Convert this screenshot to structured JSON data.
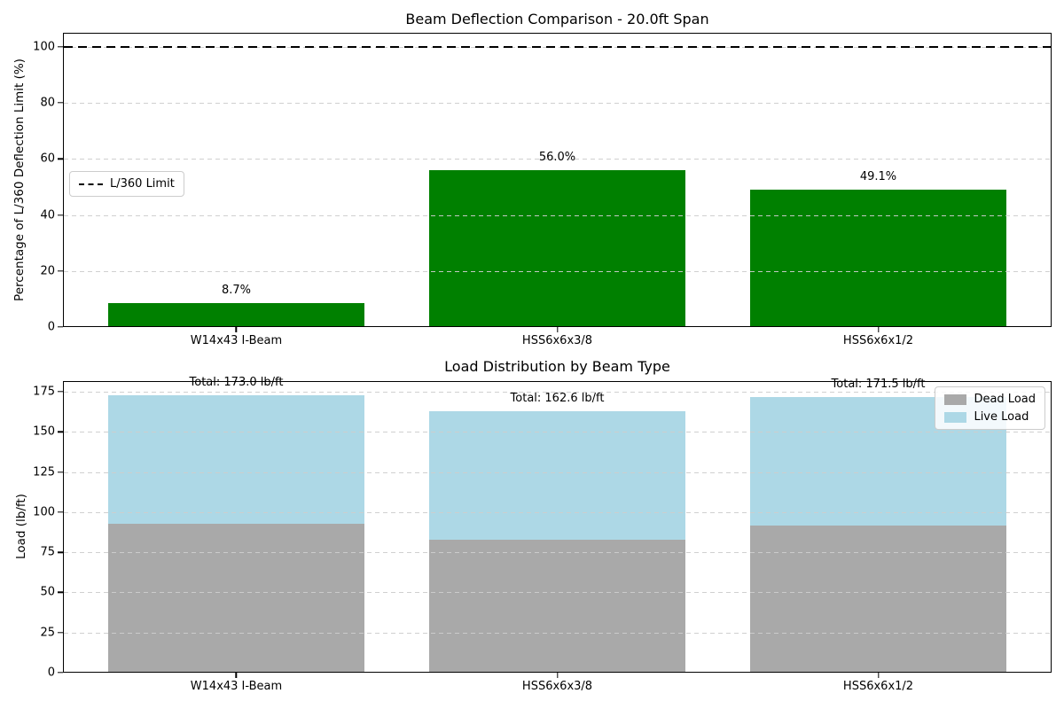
{
  "chart_data": [
    {
      "type": "bar",
      "title": "Beam Deflection Comparison - 20.0ft Span",
      "ylabel": "Percentage of L/360 Deflection Limit (%)",
      "categories": [
        "W14x43 I-Beam",
        "HSS6x6x3/8",
        "HSS6x6x1/2"
      ],
      "values": [
        8.7,
        56.0,
        49.1
      ],
      "value_labels": [
        "8.7%",
        "56.0%",
        "49.1%"
      ],
      "yticks": [
        0,
        20,
        40,
        60,
        80,
        100
      ],
      "ymax": 105,
      "bar_color": "#008000",
      "grid": true,
      "limit_line": {
        "value": 100,
        "label": "L/360 Limit",
        "color": "#000000"
      },
      "legend_position": "center left"
    },
    {
      "type": "stacked-bar",
      "title": "Load Distribution by Beam Type",
      "ylabel": "Load (lb/ft)",
      "categories": [
        "W14x43 I-Beam",
        "HSS6x6x3/8",
        "HSS6x6x1/2"
      ],
      "series": [
        {
          "name": "Dead Load",
          "color": "#a9a9a9",
          "values": [
            93.0,
            82.6,
            91.5
          ]
        },
        {
          "name": "Live Load",
          "color": "#add8e6",
          "values": [
            80.0,
            80.0,
            80.0
          ]
        }
      ],
      "totals": [
        173.0,
        162.6,
        171.5
      ],
      "total_labels": [
        "Total: 173.0 lb/ft",
        "Total: 162.6 lb/ft",
        "Total: 171.5 lb/ft"
      ],
      "yticks": [
        0,
        25,
        50,
        75,
        100,
        125,
        150,
        175
      ],
      "ymax": 181.6,
      "grid": true,
      "legend_position": "upper right"
    }
  ]
}
